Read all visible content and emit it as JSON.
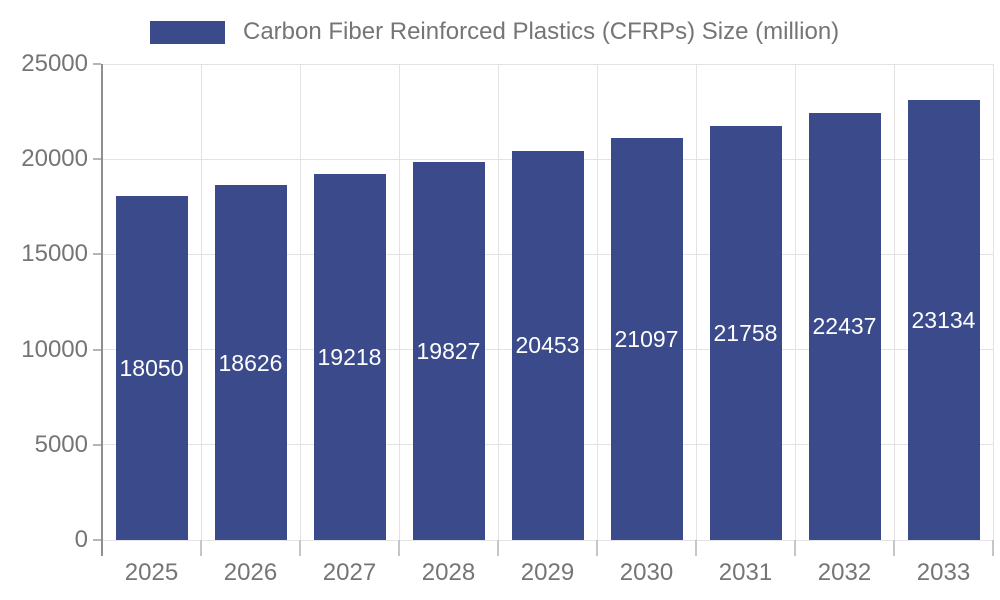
{
  "chart_data": {
    "type": "bar",
    "title": "Carbon Fiber Reinforced Plastics (CFRPs) Size (million)",
    "categories": [
      "2025",
      "2026",
      "2027",
      "2028",
      "2029",
      "2030",
      "2031",
      "2032",
      "2033"
    ],
    "values": [
      18050,
      18626,
      19218,
      19827,
      20453,
      21097,
      21758,
      22437,
      23134
    ],
    "xlabel": "",
    "ylabel": "",
    "ylim": [
      0,
      25000
    ],
    "yticks": [
      0,
      5000,
      10000,
      15000,
      20000,
      25000
    ],
    "grid": true,
    "legend": {
      "position": "top",
      "label": "Carbon Fiber Reinforced Plastics (CFRPs) Size (million)"
    },
    "colors": {
      "bar": "#3A4A8A",
      "bar_value_text": "#FFFFFF",
      "axis_text": "#757575",
      "title_text": "#757575",
      "gridline": "#E3E3E3",
      "axis_line": "#8F8F8F",
      "tick": "#C6C6C6"
    }
  }
}
